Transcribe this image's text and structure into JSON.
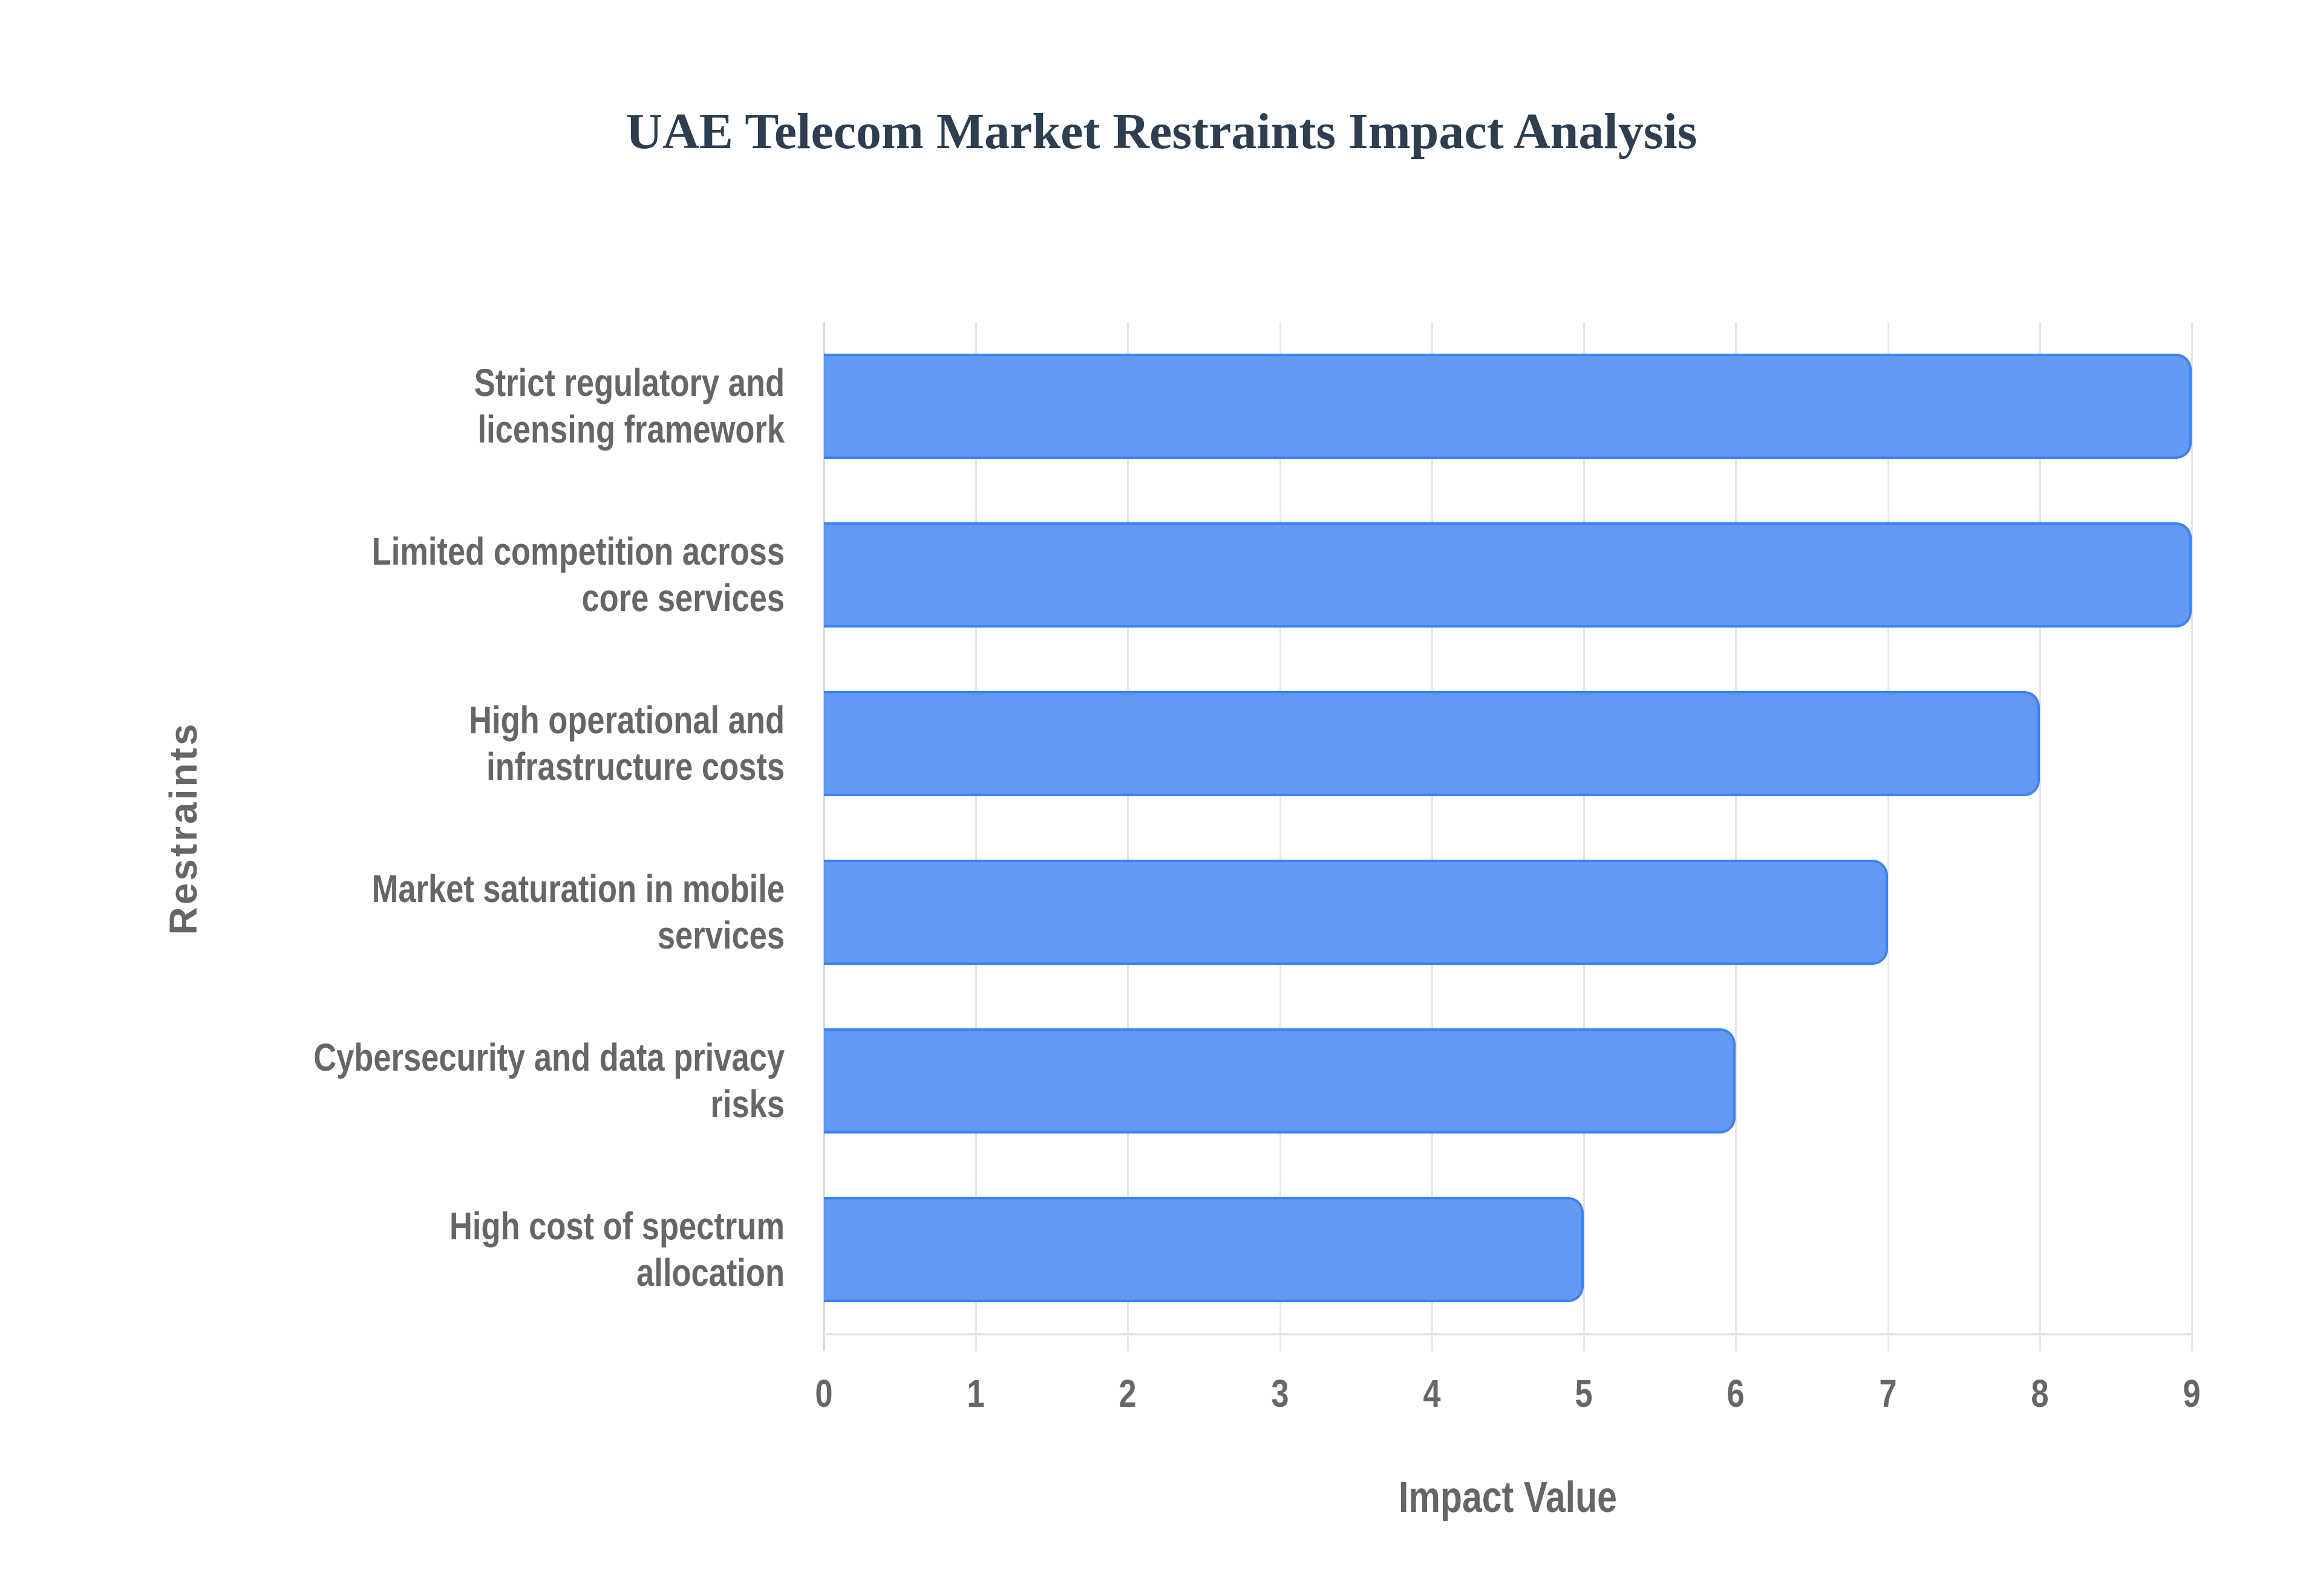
{
  "title": "UAE Telecom Market Restraints Impact Analysis",
  "axes": {
    "x_title": "Impact Value",
    "y_title": "Restraints",
    "x_ticks": [
      "0",
      "1",
      "2",
      "3",
      "4",
      "5",
      "6",
      "7",
      "8",
      "9"
    ]
  },
  "colors": {
    "bar_fill": "#6199f5",
    "bar_border": "#3b82f6",
    "title": "#2c3e50",
    "axis_text": "#666666",
    "grid": "#e6e6e6"
  },
  "categories": [
    {
      "line1": "Strict regulatory and",
      "line2": "licensing framework",
      "value": 9
    },
    {
      "line1": "Limited competition across",
      "line2": "core services",
      "value": 9
    },
    {
      "line1": "High operational and",
      "line2": "infrastructure costs",
      "value": 8
    },
    {
      "line1": "Market saturation in mobile",
      "line2": "services",
      "value": 7
    },
    {
      "line1": "Cybersecurity and data privacy",
      "line2": "risks",
      "value": 6
    },
    {
      "line1": "High cost of spectrum",
      "line2": "allocation",
      "value": 5
    }
  ],
  "chart_data": {
    "type": "bar",
    "orientation": "horizontal",
    "title": "UAE Telecom Market Restraints Impact Analysis",
    "xlabel": "Impact Value",
    "ylabel": "Restraints",
    "categories": [
      "Strict regulatory and licensing framework",
      "Limited competition across core services",
      "High operational and infrastructure costs",
      "Market saturation in mobile services",
      "Cybersecurity and data privacy risks",
      "High cost of spectrum allocation"
    ],
    "values": [
      9,
      9,
      8,
      7,
      6,
      5
    ],
    "xlim": [
      0,
      9
    ],
    "x_ticks": [
      0,
      1,
      2,
      3,
      4,
      5,
      6,
      7,
      8,
      9
    ],
    "grid": "vertical gridlines on",
    "legend": "none"
  }
}
